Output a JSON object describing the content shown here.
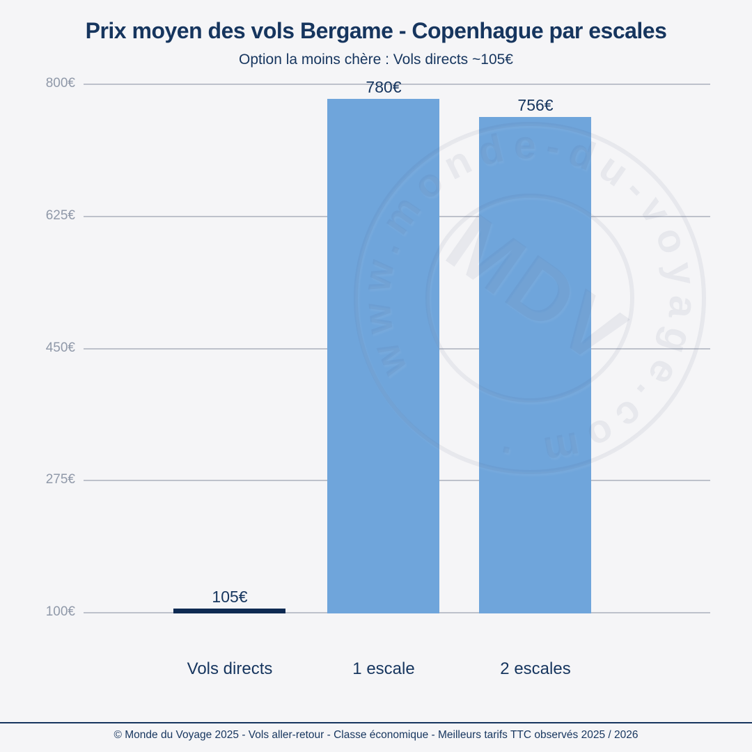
{
  "chart_data": {
    "type": "bar",
    "title": "Prix moyen des vols Bergame - Copenhague par escales",
    "subtitle": "Option la moins chère : Vols directs ~105€",
    "categories": [
      "Vols directs",
      "1 escale",
      "2 escales"
    ],
    "values": [
      105,
      780,
      756
    ],
    "value_labels": [
      "105€",
      "780€",
      "756€"
    ],
    "bar_colors": [
      "#0e2a52",
      "#6fa5db",
      "#6fa5db"
    ],
    "yticks": [
      {
        "value": 800,
        "label": "800€"
      },
      {
        "value": 625,
        "label": "625€"
      },
      {
        "value": 450,
        "label": "450€"
      },
      {
        "value": 275,
        "label": "275€"
      },
      {
        "value": 100,
        "label": "100€"
      }
    ],
    "ylim": [
      100,
      800
    ],
    "grid": true,
    "legend": false
  },
  "watermark": {
    "ring_text": "www.monde-du-voyage.com ·",
    "center_text": "MDV"
  },
  "footer": {
    "text": "© Monde du Voyage 2025 - Vols aller-retour - Classe économique - Meilleurs tarifs TTC observés 2025 / 2026"
  },
  "colors": {
    "bg": "#f5f5f7",
    "navy": "#16355e",
    "bar-blue": "#6fa5db",
    "bar-navy": "#0e2a52",
    "grid": "#bdc1cb",
    "tick": "#9099a9"
  }
}
